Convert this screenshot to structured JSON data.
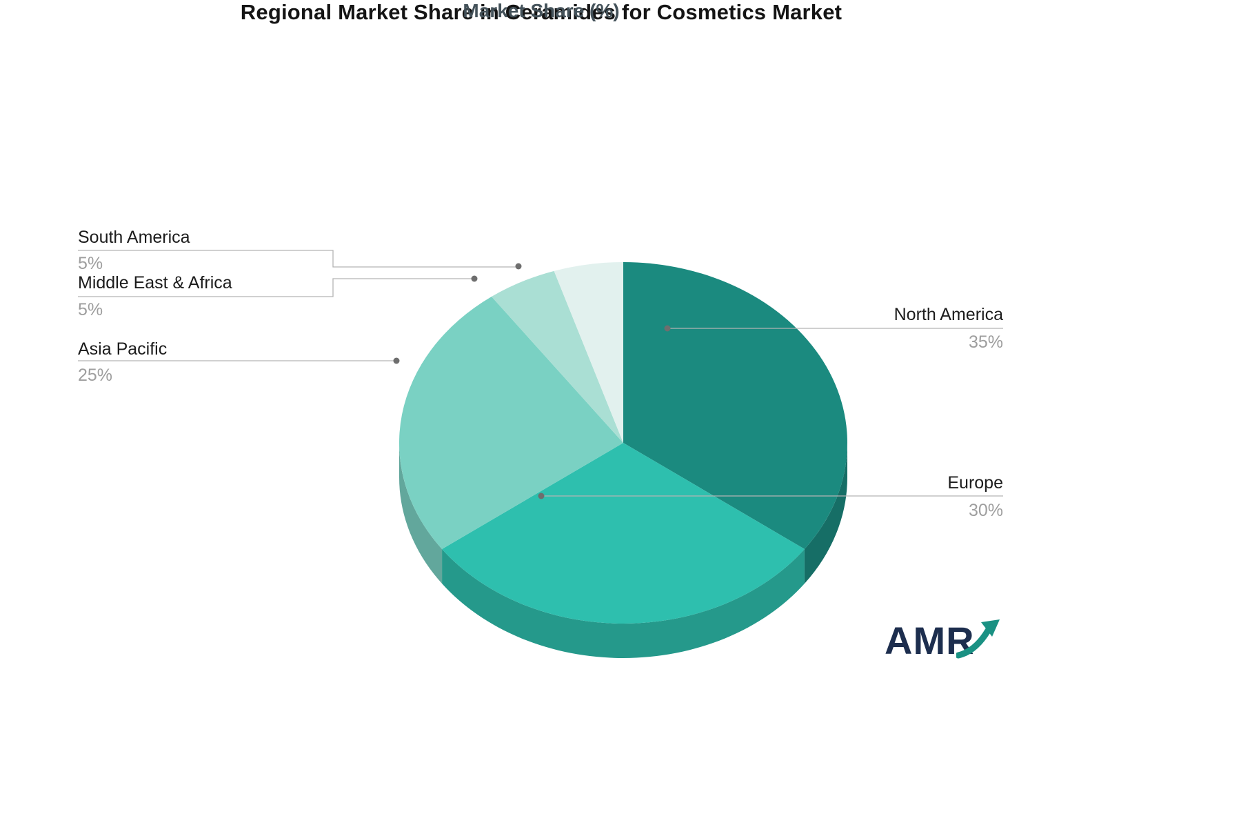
{
  "title": "Regional Market Share in Ceramides for Cosmetics Market",
  "subtitle": "Market Share (%)",
  "logo": {
    "text": "AMR"
  },
  "chart_data": {
    "type": "pie",
    "title": "Regional Market Share in Ceramides for Cosmetics Market",
    "subtitle": "Market Share (%)",
    "unit": "%",
    "order": "clockwise-from-top",
    "effect": "3d",
    "labels": [
      "North America",
      "Europe",
      "Asia Pacific",
      "Middle East & Africa",
      "South America"
    ],
    "values": [
      35,
      30,
      25,
      5,
      5
    ],
    "value_labels": [
      "35%",
      "30%",
      "25%",
      "5%",
      "5%"
    ],
    "colors": [
      "#1b8a7f",
      "#2ebfae",
      "#7ad1c3",
      "#aadfd4",
      "#e2f1ee"
    ]
  }
}
